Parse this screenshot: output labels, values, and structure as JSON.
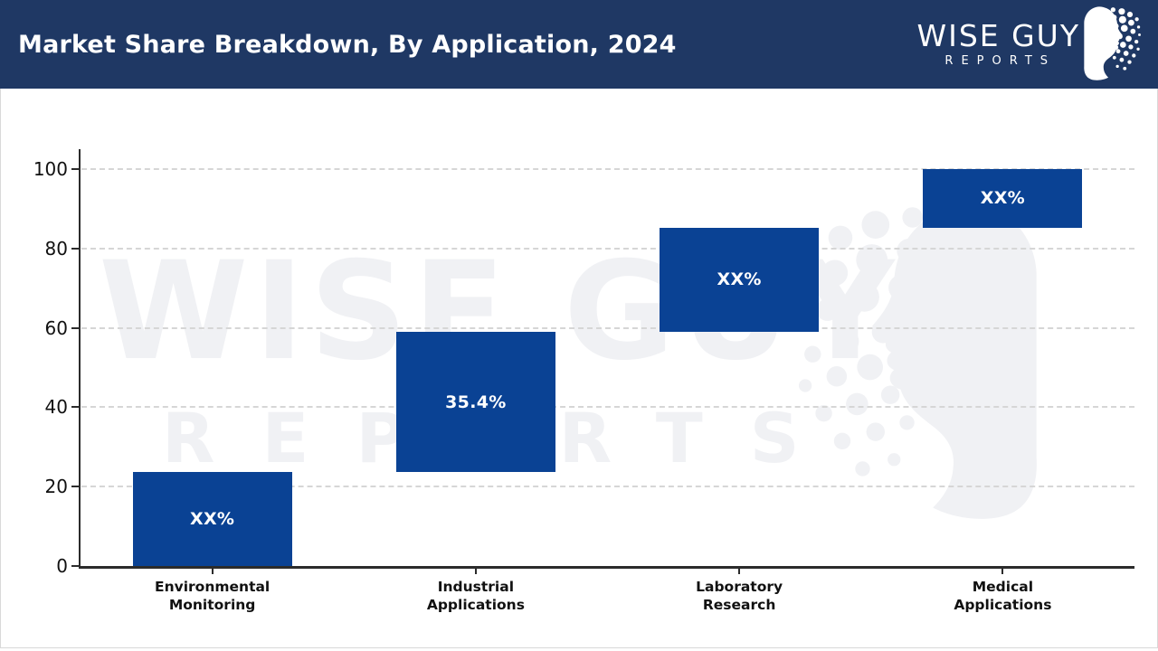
{
  "header": {
    "title": "Market Share Breakdown, By Application, 2024",
    "logo": {
      "line1": "WISE GUY",
      "line2": "REPORTS"
    }
  },
  "watermark": {
    "line1": "WISE GUY",
    "line2": "REPORTS"
  },
  "chart_data": {
    "type": "bar",
    "subtype": "waterfall-floating-bars",
    "title": "Market Share Breakdown, By Application, 2024",
    "categories": [
      "Environmental\nMonitoring",
      "Industrial\nApplications",
      "Laboratory\nResearch",
      "Medical\nApplications"
    ],
    "series": [
      {
        "name": "Market Share (%)",
        "segments": [
          {
            "category": "Environmental Monitoring",
            "start": 0,
            "end": 23.6,
            "label": "XX%"
          },
          {
            "category": "Industrial Applications",
            "start": 23.6,
            "end": 59.0,
            "label": "35.4%"
          },
          {
            "category": "Laboratory Research",
            "start": 59.0,
            "end": 85.2,
            "label": "XX%"
          },
          {
            "category": "Medical Applications",
            "start": 85.2,
            "end": 100,
            "label": "XX%"
          }
        ]
      }
    ],
    "xlabel": "",
    "ylabel": "",
    "ylim": [
      0,
      105
    ],
    "yticks": [
      0,
      20,
      40,
      60,
      80,
      100
    ],
    "grid": "horizontal-dashed",
    "legend": "none",
    "bar_color": "#0a4294",
    "bar_label_color": "#ffffff",
    "header_color": "#1f3864"
  }
}
